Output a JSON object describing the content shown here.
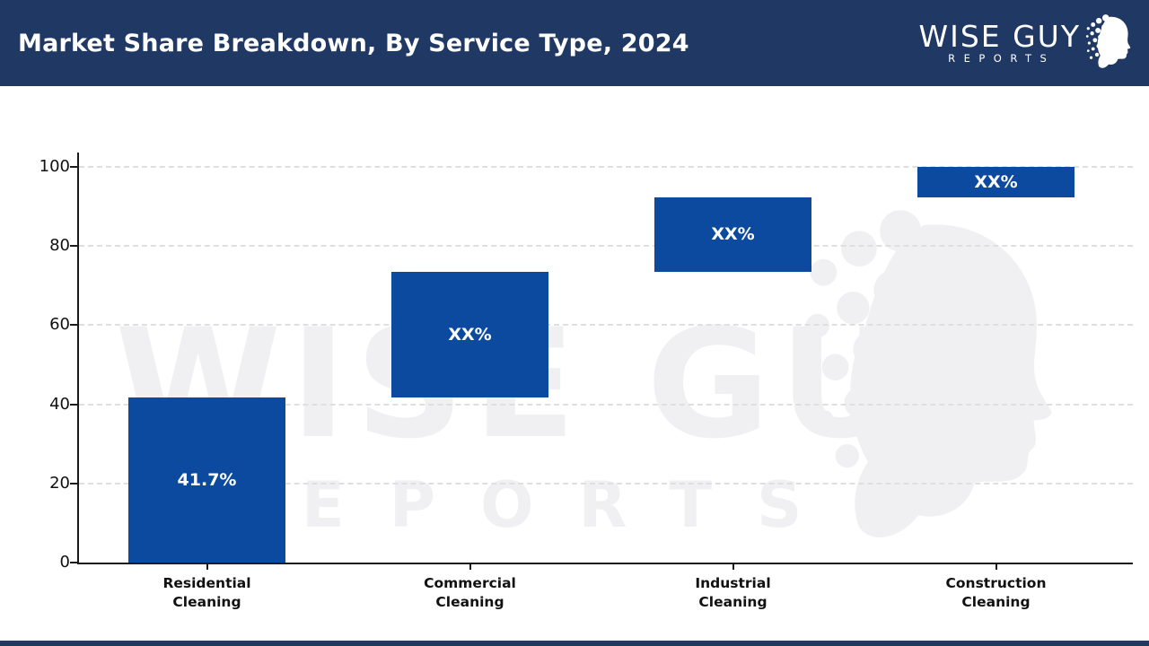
{
  "header": {
    "title": "Market Share Breakdown, By Service Type, 2024",
    "logo": {
      "line1": "WISE GUY",
      "line2": "REPORTS"
    }
  },
  "watermark": {
    "line1": "WISE GUY",
    "line2": "REPORTS"
  },
  "colors": {
    "header_bg": "#1F3864",
    "bar": "#0B4A9F",
    "grid": "#DFDFDF",
    "axis": "#1A1A1A",
    "bar_label_text": "#FFFFFF",
    "watermark": "#F0F0F2"
  },
  "chart_data": {
    "type": "bar",
    "subtype": "waterfall",
    "title": "Market Share Breakdown, By Service Type, 2024",
    "categories": [
      "Residential\nCleaning",
      "Commercial\nCleaning",
      "Industrial\nCleaning",
      "Construction\nCleaning"
    ],
    "segments": [
      {
        "category": "Residential Cleaning",
        "start": 0,
        "end": 41.7,
        "label": "41.7%"
      },
      {
        "category": "Commercial Cleaning",
        "start": 41.7,
        "end": 73.5,
        "label": "XX%"
      },
      {
        "category": "Industrial Cleaning",
        "start": 73.5,
        "end": 92.3,
        "label": "XX%"
      },
      {
        "category": "Construction Cleaning",
        "start": 92.3,
        "end": 100,
        "label": "XX%"
      }
    ],
    "xlabel": "",
    "ylabel": "",
    "ylim": [
      0,
      100
    ],
    "yticks": [
      0,
      20,
      40,
      60,
      80,
      100
    ],
    "grid": "horizontal-dashed",
    "legend": "none"
  }
}
